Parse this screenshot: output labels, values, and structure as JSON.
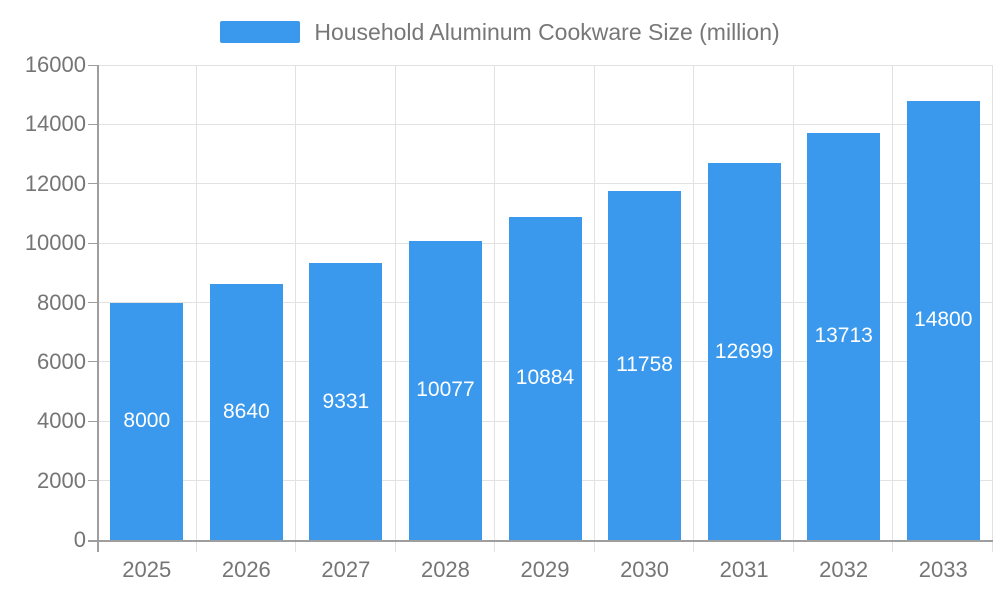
{
  "legend": {
    "label": "Household Aluminum Cookware Size (million)"
  },
  "chart_data": {
    "type": "bar",
    "title": "Household Aluminum Cookware Size (million)",
    "categories": [
      "2025",
      "2026",
      "2027",
      "2028",
      "2029",
      "2030",
      "2031",
      "2032",
      "2033"
    ],
    "values": [
      8000,
      8640,
      9331,
      10077,
      10884,
      11758,
      12699,
      13713,
      14800
    ],
    "series": [
      {
        "name": "Household Aluminum Cookware Size (million)",
        "values": [
          8000,
          8640,
          9331,
          10077,
          10884,
          11758,
          12699,
          13713,
          14800
        ]
      }
    ],
    "xlabel": "",
    "ylabel": "",
    "ylim": [
      0,
      16000
    ],
    "ytick_step": 2000,
    "yticks": [
      0,
      2000,
      4000,
      6000,
      8000,
      10000,
      12000,
      14000,
      16000
    ],
    "grid": true,
    "legend_position": "top",
    "bar_value_labels_visible": true
  },
  "colors": {
    "bar": "#3a99ec",
    "bar_label": "#ffffff",
    "grid": "#e2e2e2",
    "axis": "#9e9e9e",
    "tick_text": "#757575",
    "legend_text": "#777777",
    "background": "#ffffff"
  }
}
